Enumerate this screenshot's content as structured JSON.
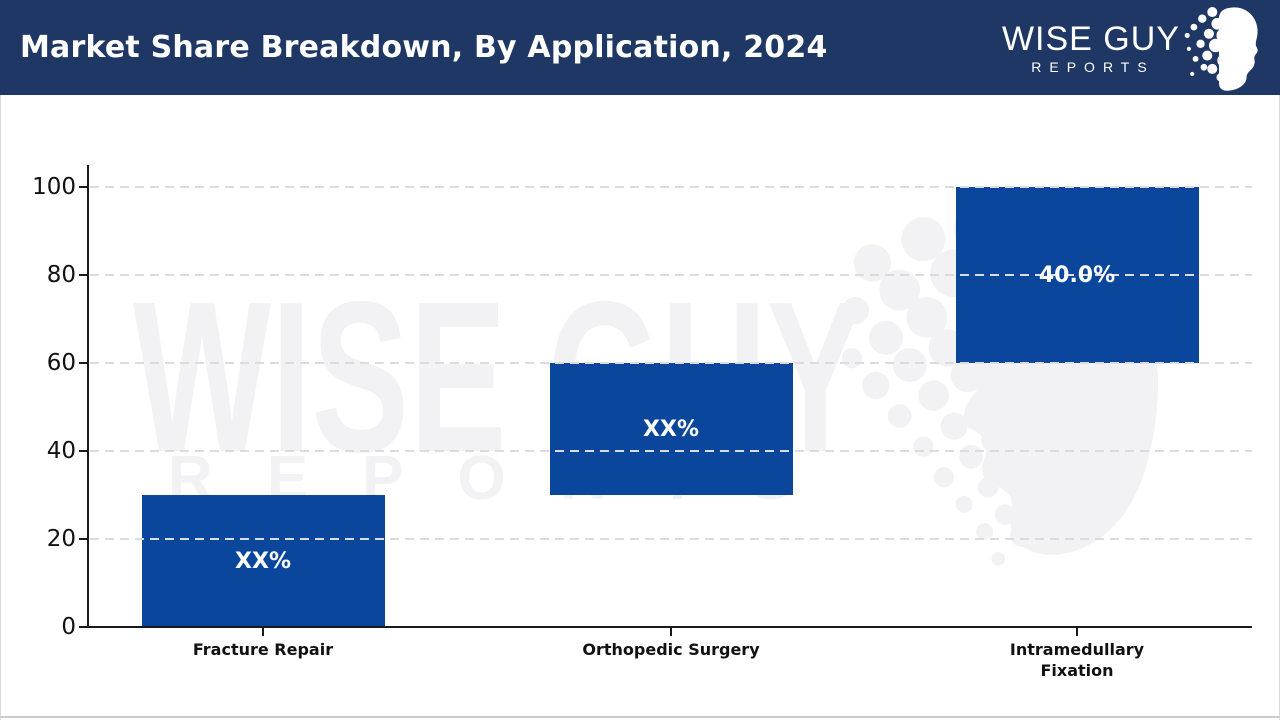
{
  "header": {
    "title": "Market Share Breakdown, By Application, 2024",
    "logo": {
      "line1": "WISE GUY",
      "line2": "REPORTS"
    }
  },
  "watermark": {
    "line1": "WISE GUY",
    "line2": "REPORTS"
  },
  "colors": {
    "header_bg": "#1f3765",
    "bar": "#0a479c",
    "grid": "#dcdcdc",
    "axis": "#1a1a1a",
    "bar_label_text": "#ffffff",
    "watermark": "#f2f2f4"
  },
  "chart_data": {
    "type": "bar",
    "subtype": "floating-waterfall",
    "title": "Market Share Breakdown, By Application, 2024",
    "categories": [
      "Fracture Repair",
      "Orthopedic Surgery",
      "Intramedullary\nFixation"
    ],
    "bars": [
      {
        "start": 0,
        "end": 30,
        "label": "XX%"
      },
      {
        "start": 30,
        "end": 60,
        "label": "XX%"
      },
      {
        "start": 60,
        "end": 100,
        "label": "40.0%"
      }
    ],
    "yticks": [
      0,
      20,
      40,
      60,
      80,
      100
    ],
    "ylim": [
      0,
      105
    ],
    "xlabel": "",
    "ylabel": "",
    "grid": "horizontal-dashed",
    "legend": "none"
  }
}
